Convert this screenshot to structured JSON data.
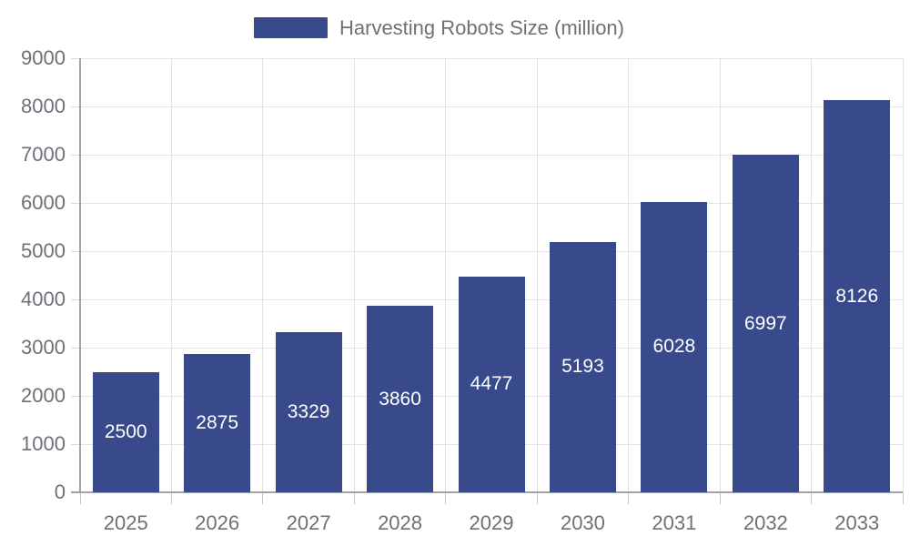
{
  "legend": {
    "label": "Harvesting Robots Size (million)"
  },
  "chart_data": {
    "type": "bar",
    "title": "Harvesting Robots Size (million)",
    "series_name": "Harvesting Robots Size (million)",
    "categories": [
      "2025",
      "2026",
      "2027",
      "2028",
      "2029",
      "2030",
      "2031",
      "2032",
      "2033"
    ],
    "values": [
      2500,
      2875,
      3329,
      3860,
      4477,
      5193,
      6028,
      6997,
      8126
    ],
    "xlabel": "",
    "ylabel": "",
    "ylim": [
      0,
      9000
    ],
    "yticks": [
      0,
      1000,
      2000,
      3000,
      4000,
      5000,
      6000,
      7000,
      8000,
      9000
    ],
    "grid": true,
    "legend_position": "top-center",
    "value_label_position": "inside-middle",
    "colors": {
      "bar": "#384A8C",
      "value_text": "#FFFFFF",
      "axis_text": "#6E7079",
      "grid": "#E3E3E6",
      "axis_line": "#A3A3A3",
      "y_tick": "#D9D9DC",
      "x_tick": "#C6C6C9",
      "background": "#FFFFFF"
    }
  }
}
